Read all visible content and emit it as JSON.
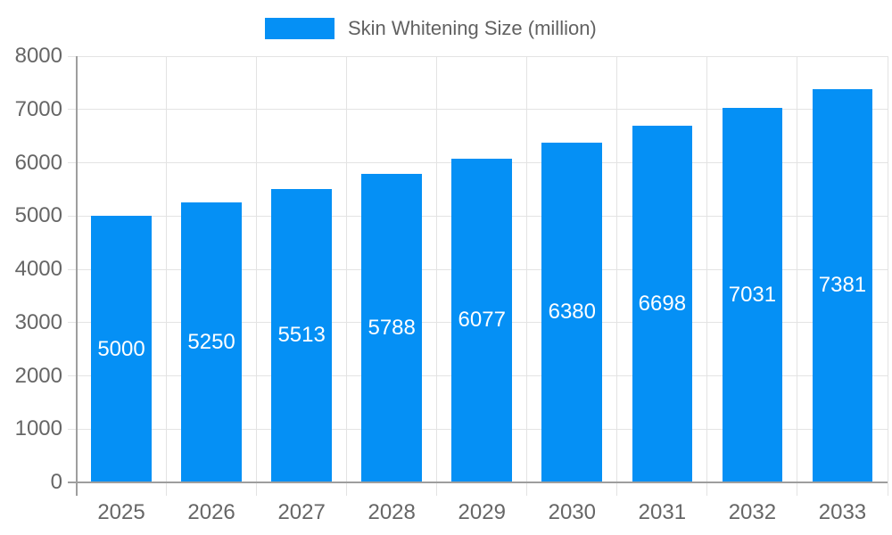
{
  "chart_data": {
    "type": "bar",
    "title": "Skin Whitening Size (million)",
    "legend": [
      {
        "label": "Skin Whitening Size (million)"
      }
    ],
    "legend_position": "top",
    "categories": [
      "2025",
      "2026",
      "2027",
      "2028",
      "2029",
      "2030",
      "2031",
      "2032",
      "2033"
    ],
    "values": [
      5000,
      5250,
      5513,
      5788,
      6077,
      6380,
      6698,
      7031,
      7381
    ],
    "xlabel": "",
    "ylabel": "",
    "ylim": [
      0,
      8000
    ],
    "yticks": [
      0,
      1000,
      2000,
      3000,
      4000,
      5000,
      6000,
      7000,
      8000
    ],
    "grid": true,
    "value_labels_shown": true
  },
  "colors": {
    "bar": "#0590F5",
    "grid": "#e3e3e3",
    "axis": "#9e9e9e",
    "axis_label": "#666666",
    "legend_text": "#616161",
    "value_label": "#ffffff",
    "background": "#ffffff"
  }
}
